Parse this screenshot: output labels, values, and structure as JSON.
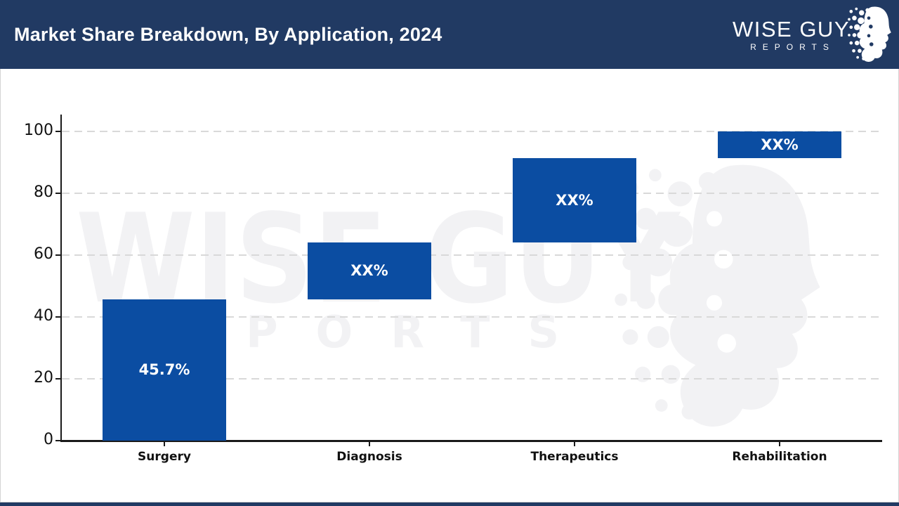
{
  "header": {
    "title": "Market Share Breakdown, By Application, 2024",
    "logo": {
      "wordmark": "WISE GUY",
      "subtext": "REPORTS"
    }
  },
  "watermark": {
    "line1": "WISE GUY",
    "line2": "REPORTS"
  },
  "chart_data": {
    "type": "bar",
    "subtype": "waterfall-floating-bars",
    "title": "Market Share Breakdown, By Application, 2024",
    "categories": [
      "Surgery",
      "Diagnosis",
      "Therapeutics",
      "Rehabilitation"
    ],
    "bars": [
      {
        "category": "Surgery",
        "start": 0,
        "end": 45.7,
        "label": "45.7%"
      },
      {
        "category": "Diagnosis",
        "start": 45.7,
        "end": 64.1,
        "label": "XX%"
      },
      {
        "category": "Therapeutics",
        "start": 64.1,
        "end": 91.4,
        "label": "XX%"
      },
      {
        "category": "Rehabilitation",
        "start": 91.4,
        "end": 100,
        "label": "XX%"
      }
    ],
    "xlabel": "",
    "ylabel": "",
    "ylim": [
      0,
      100
    ],
    "yticks": [
      0,
      20,
      40,
      60,
      80,
      100
    ],
    "grid": "horizontal-dashed",
    "legend": "none",
    "bar_color": "#0B4DA2",
    "value_label_color": "#FFFFFF",
    "axis_color": "#1A1A1A",
    "gridline_color": "#D9D9D9",
    "header_color": "#213A63",
    "watermark_color": "#F2F2F4"
  }
}
